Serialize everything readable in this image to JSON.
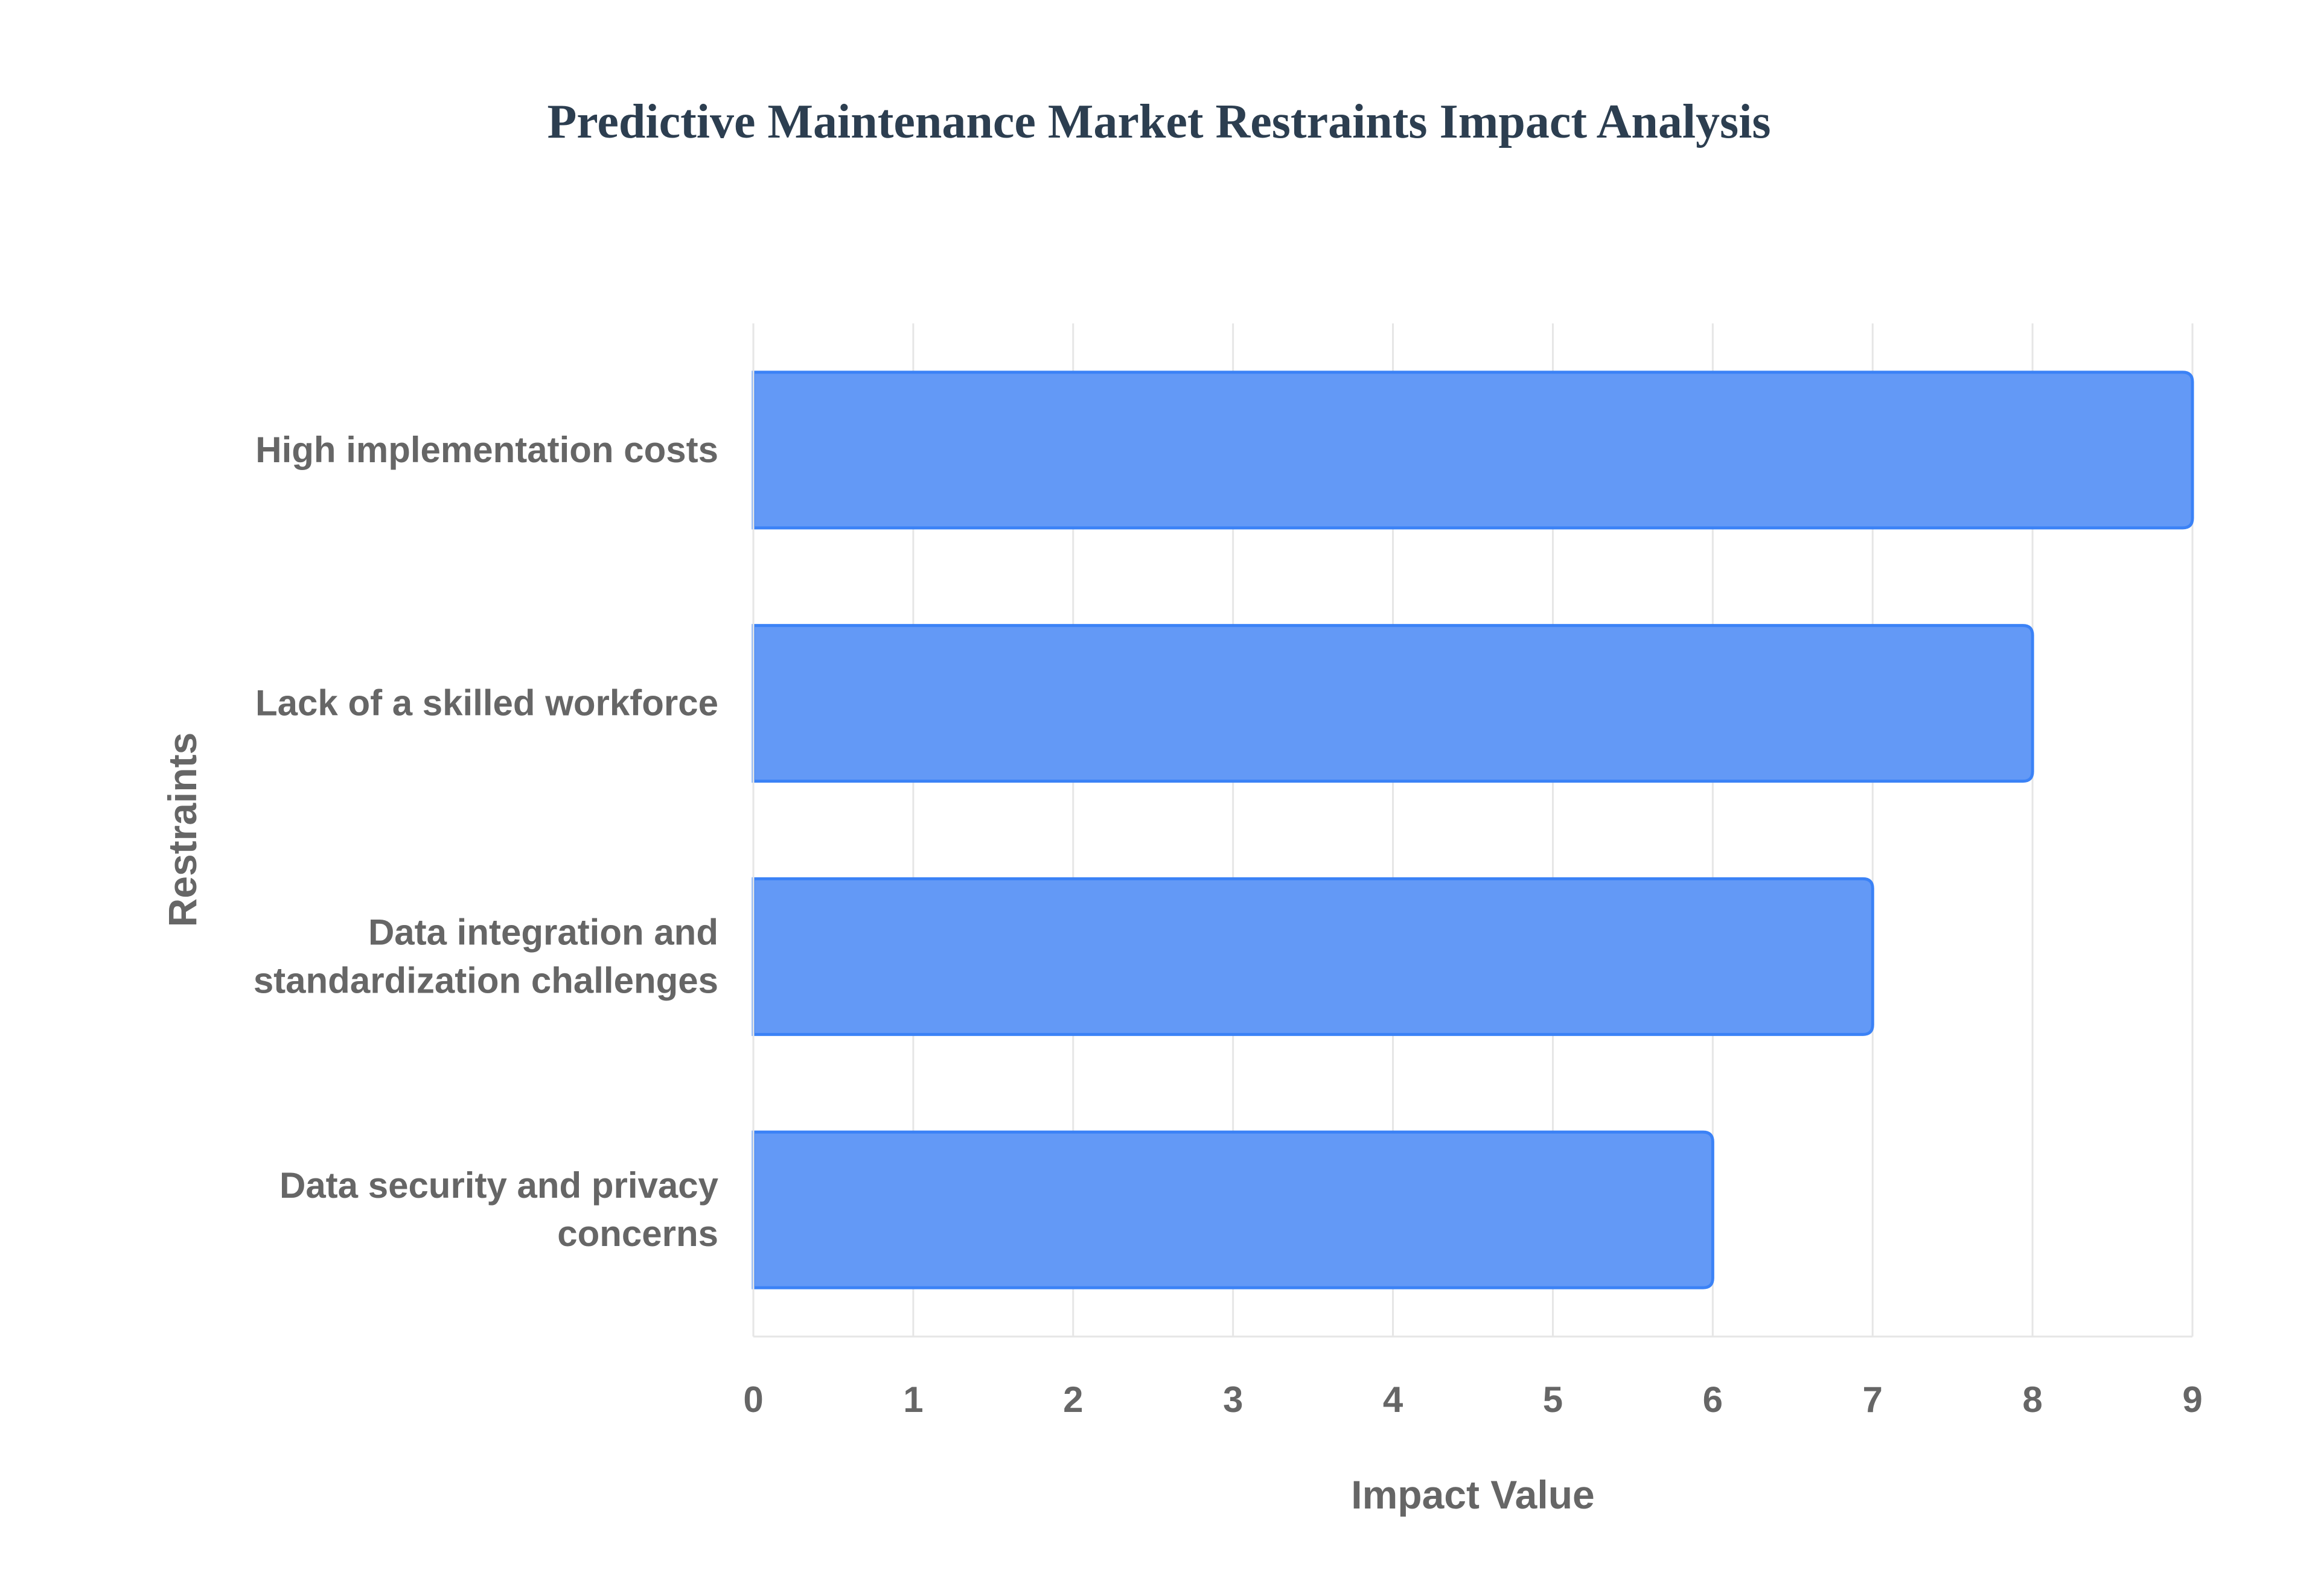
{
  "chart_data": {
    "type": "bar",
    "orientation": "horizontal",
    "title": "Predictive Maintenance Market Restraints Impact Analysis",
    "xlabel": "Impact Value",
    "ylabel": "Restraints",
    "categories": [
      [
        "High implementation costs"
      ],
      [
        "Lack of a skilled workforce"
      ],
      [
        "Data integration and",
        "standardization challenges"
      ],
      [
        "Data security and privacy",
        "concerns"
      ]
    ],
    "values": [
      9,
      8,
      7,
      6
    ],
    "xlim": [
      0,
      9
    ],
    "xticks": [
      "0",
      "1",
      "2",
      "3",
      "4",
      "5",
      "6",
      "7",
      "8",
      "9"
    ],
    "grid": true,
    "legend": "none",
    "colors": {
      "bar_fill": "#6399f6",
      "bar_stroke": "#3b82f6",
      "title": "#2c3e50",
      "axis_text": "#666666",
      "grid": "#e6e6e6"
    }
  }
}
